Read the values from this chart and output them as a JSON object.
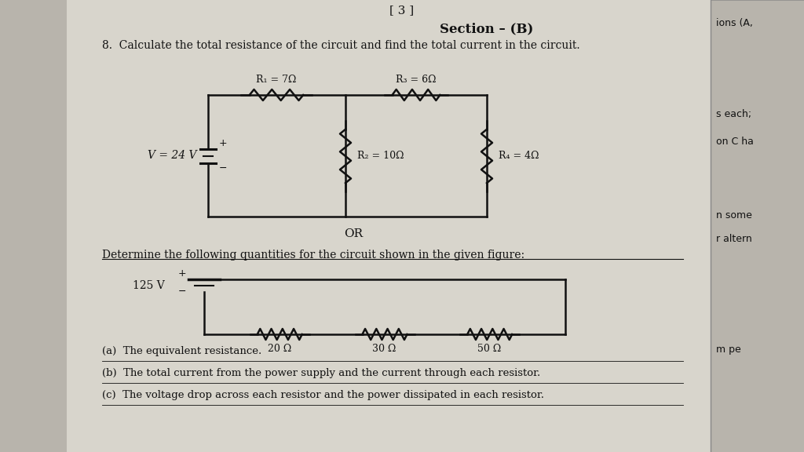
{
  "bg_color": "#b8b4ac",
  "paper_color": "#d8d5cc",
  "text_color": "#111111",
  "page_number": "[ 3 ]",
  "section_title": "Section – (B)",
  "question_8": "8.  Calculate the total resistance of the circuit and find the total current in the circuit.",
  "or_text": "OR",
  "determine_text": "Determine the following quantities for the circuit shown in the given figure:",
  "sub_questions": [
    "(a)  The equivalent resistance.",
    "(b)  The total current from the power supply and the current through each resistor.",
    "(c)  The voltage drop across each resistor and the power dissipated in each resistor."
  ],
  "circuit1": {
    "voltage": "V = 24 V",
    "R1": "R₁ = 7Ω",
    "R2": "R₂ = 10Ω",
    "R3": "R₃ = 6Ω",
    "R4": "R₄ = 4Ω"
  },
  "circuit2": {
    "voltage": "125 V",
    "R1": "20 Ω",
    "R2": "30 Ω",
    "R3": "50 Ω"
  },
  "right_side_texts": [
    "ions (A,",
    "s each;",
    "on C ha",
    "n some",
    "r altern",
    "m pe"
  ],
  "right_side_y": [
    5.35,
    4.35,
    4.05,
    3.15,
    2.88,
    1.6
  ]
}
